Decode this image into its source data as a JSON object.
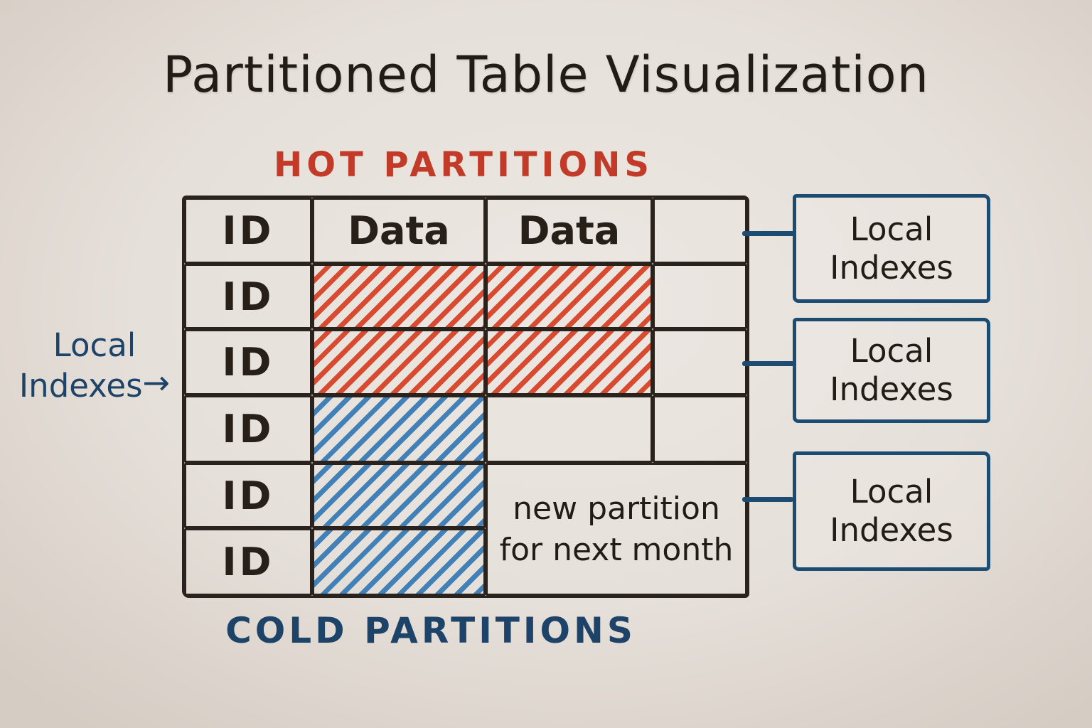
{
  "page": {
    "title": "Partitioned Table Visualization"
  },
  "labels": {
    "hot": "HOT PARTITIONS",
    "cold": "COLD PARTITIONS",
    "left_index_line1": "Local",
    "left_index_line2": "Indexes",
    "left_index_arrow": "→"
  },
  "table": {
    "header": {
      "id": "ID",
      "data1": "Data",
      "data2": "Data"
    },
    "rows": [
      {
        "id": "ID",
        "data1_fill": "hatch-red",
        "data2_fill": "hatch-red"
      },
      {
        "id": "ID",
        "data1_fill": "hatch-red",
        "data2_fill": "hatch-red"
      },
      {
        "id": "ID",
        "data1_fill": "hatch-blue",
        "data2_fill": "none"
      },
      {
        "id": "ID",
        "data1_fill": "hatch-blue"
      },
      {
        "id": "ID",
        "data1_fill": "hatch-blue"
      }
    ],
    "merged_note": {
      "line1": "new partition",
      "line2": "for next month"
    }
  },
  "index_boxes": [
    {
      "line1": "Local",
      "line2": "Indexes"
    },
    {
      "line1": "Local",
      "line2": "Indexes"
    },
    {
      "line1": "Local",
      "line2": "Indexes"
    }
  ],
  "colors": {
    "hot_text": "#c23a28",
    "red_hatch": "#d84b30",
    "cold_text": "#1d4468",
    "blue_hatch": "#4280b8",
    "index_border": "#1c4c72",
    "ink": "#2a231d",
    "background": "#e6e0da"
  }
}
